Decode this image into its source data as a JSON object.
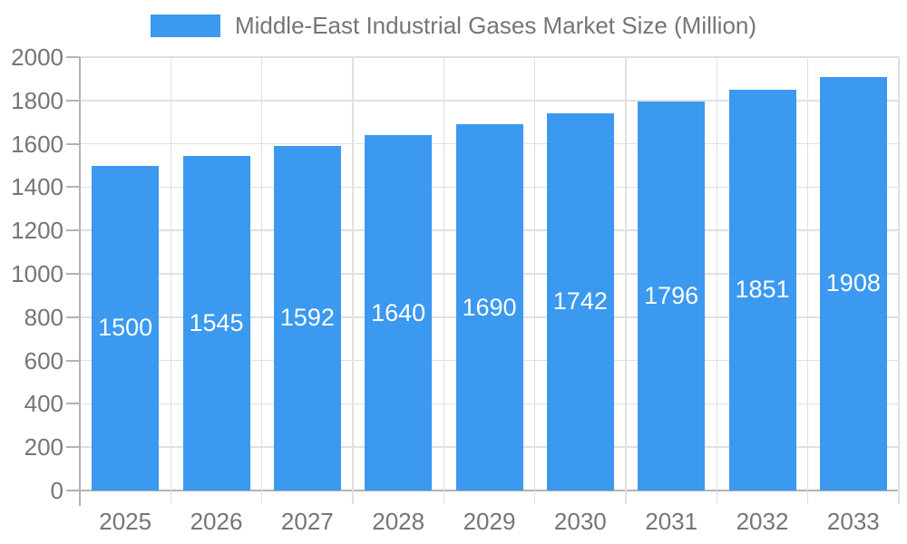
{
  "chart_data": {
    "type": "bar",
    "title": "Middle-East Industrial Gases Market Size (Million)",
    "categories": [
      "2025",
      "2026",
      "2027",
      "2028",
      "2029",
      "2030",
      "2031",
      "2032",
      "2033"
    ],
    "values": [
      1500,
      1545,
      1592,
      1640,
      1690,
      1742,
      1796,
      1851,
      1908
    ],
    "value_labels": [
      "1500",
      "1545",
      "1592",
      "1640",
      "1690",
      "1742",
      "1796",
      "1851",
      "1908"
    ],
    "y_tick_labels": [
      "0",
      "200",
      "400",
      "600",
      "800",
      "1000",
      "1200",
      "1400",
      "1600",
      "1800",
      "2000"
    ],
    "ylim": [
      0,
      2000
    ],
    "ytick_step": 200,
    "xlabel": "",
    "ylabel": "",
    "grid": "on",
    "legend_position": "top-center",
    "colors": {
      "bar": "#3B99EF",
      "axis_text": "#757575",
      "legend_text": "#757575",
      "value_text": "#ffffff",
      "gridline": "#e0e0e0",
      "axis_line": "#b3b3b3",
      "background": "#ffffff"
    }
  }
}
